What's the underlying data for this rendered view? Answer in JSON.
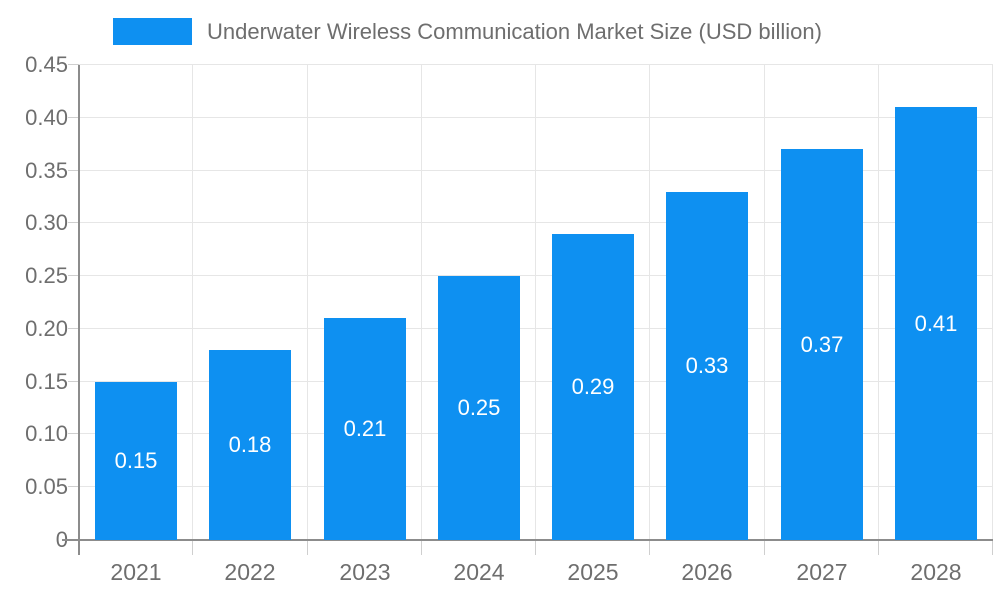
{
  "chart_data": {
    "type": "bar",
    "title": "Underwater Wireless Communication Market Size (USD billion)",
    "categories": [
      "2021",
      "2022",
      "2023",
      "2024",
      "2025",
      "2026",
      "2027",
      "2028"
    ],
    "series": [
      {
        "name": "Underwater Wireless Communication Market Size (USD billion)",
        "values": [
          0.15,
          0.18,
          0.21,
          0.25,
          0.29,
          0.33,
          0.37,
          0.41
        ],
        "color": "#0E90F1"
      }
    ],
    "bar_value_labels": [
      "0.15",
      "0.18",
      "0.21",
      "0.25",
      "0.29",
      "0.33",
      "0.37",
      "0.41"
    ],
    "value_label_color": "#ffffff",
    "xlabel": "",
    "ylabel": "",
    "ylim": [
      0,
      0.45
    ],
    "yticks": [
      {
        "value": 0.0,
        "label": "0"
      },
      {
        "value": 0.05,
        "label": "0.05"
      },
      {
        "value": 0.1,
        "label": "0.10"
      },
      {
        "value": 0.15,
        "label": "0.15"
      },
      {
        "value": 0.2,
        "label": "0.20"
      },
      {
        "value": 0.25,
        "label": "0.25"
      },
      {
        "value": 0.3,
        "label": "0.30"
      },
      {
        "value": 0.35,
        "label": "0.35"
      },
      {
        "value": 0.4,
        "label": "0.40"
      },
      {
        "value": 0.45,
        "label": "0.45"
      }
    ],
    "grid": {
      "horizontal": true,
      "vertical": true,
      "color": "#e6e6e6"
    },
    "axis_color": "#8c8c8c",
    "tick_color": "#cfcfcf",
    "label_color": "#6e6e6e",
    "legend_position": "top-left",
    "background": "#ffffff"
  }
}
